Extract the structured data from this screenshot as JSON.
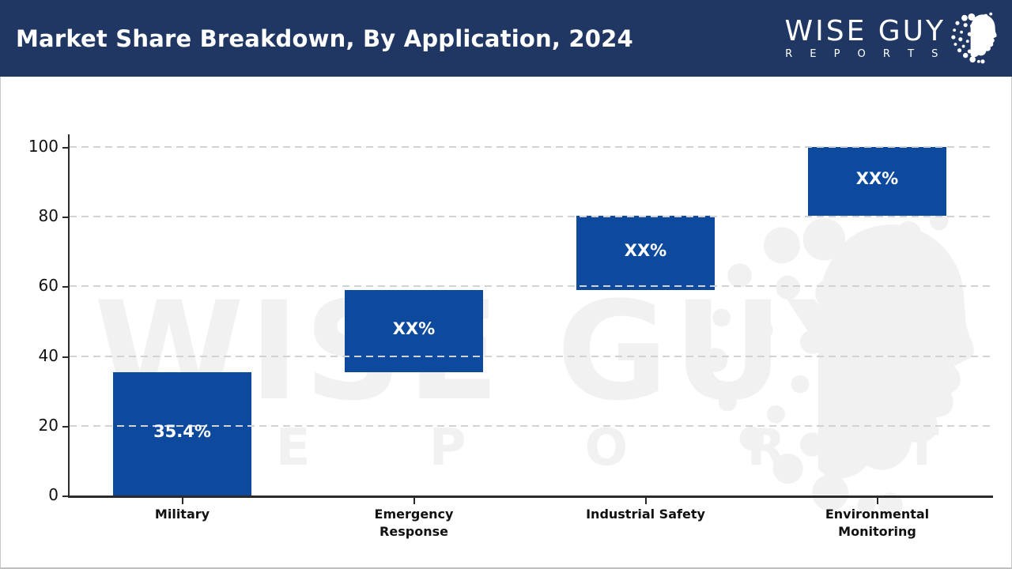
{
  "header": {
    "title": "Market Share Breakdown, By Application, 2024",
    "brand": {
      "name": "WISE GUY",
      "subtitle": "R E P O R T S"
    }
  },
  "watermark": {
    "line1": "WISE GUY",
    "line2": "R E P O R T S"
  },
  "colors": {
    "header_bg": "#203764",
    "bar": "#0d4a9e",
    "grid": "#d2d2d2",
    "axis": "#2a2a2a",
    "bar_label_text": "#ffffff",
    "watermark": "#f1f1f1",
    "frame_border": "#c9c9c9",
    "tick_text": "#111111"
  },
  "chart_data": {
    "type": "bar",
    "subtype": "waterfall",
    "title": "Market Share Breakdown, By Application, 2024",
    "xlabel": "",
    "ylabel": "",
    "categories": [
      "Military",
      "Emergency Response",
      "Industrial Safety",
      "Environmental Monitoring"
    ],
    "segments": [
      {
        "category": "Military",
        "start": 0,
        "end": 35.4,
        "value": 35.4,
        "label": "35.4%"
      },
      {
        "category": "Emergency Response",
        "start": 35.4,
        "end": 59.0,
        "value": null,
        "label": "XX%"
      },
      {
        "category": "Industrial Safety",
        "start": 59.0,
        "end": 80.3,
        "value": null,
        "label": "XX%"
      },
      {
        "category": "Environmental Monitoring",
        "start": 80.3,
        "end": 100.0,
        "value": null,
        "label": "XX%"
      }
    ],
    "yticks": [
      0,
      20,
      40,
      60,
      80,
      100
    ],
    "ylim": [
      0,
      104
    ],
    "grid": "dashed-horizontal-over-bars",
    "legend": "none"
  }
}
